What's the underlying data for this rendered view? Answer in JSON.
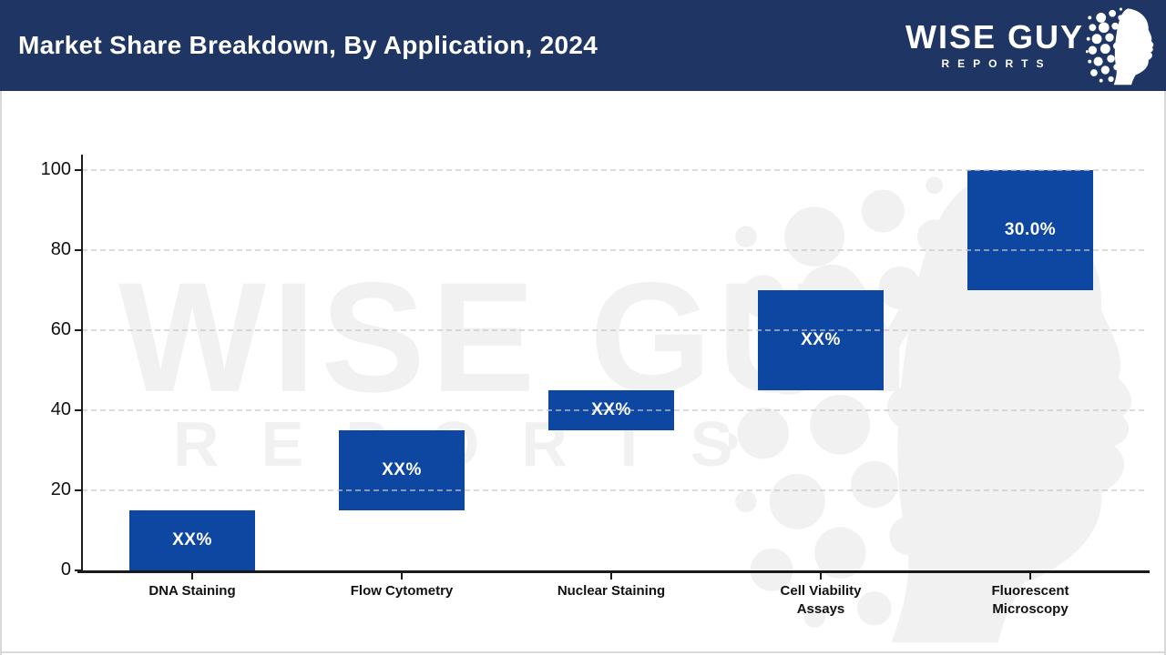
{
  "header": {
    "title": "Market Share Breakdown, By Application, 2024",
    "logo": {
      "name": "WISE GUY",
      "tagline": "REPORTS"
    }
  },
  "watermark": {
    "text": "WISE GUY",
    "tagline": "REPORTS"
  },
  "colors": {
    "header_bg": "#1f3563",
    "bar": "#0d47a1",
    "grid": "#d8d8d8",
    "axis": "#1a1a1a",
    "watermark": "#f1f1f1",
    "border": "#d9d9d9"
  },
  "chart_data": {
    "type": "bar",
    "subtype": "floating-segment-waterfall",
    "title": "Market Share Breakdown, By Application, 2024",
    "categories": [
      "DNA Staining",
      "Flow Cytometry",
      "Nuclear Staining",
      "Cell Viability Assays",
      "Fluorescent Microscopy"
    ],
    "category_label_lines": [
      [
        "DNA Staining"
      ],
      [
        "Flow Cytometry"
      ],
      [
        "Nuclear Staining"
      ],
      [
        "Cell Viability",
        "Assays"
      ],
      [
        "Fluorescent",
        "Microscopy"
      ]
    ],
    "segments": [
      {
        "category": "DNA Staining",
        "start": 0,
        "end": 15,
        "label": "XX%"
      },
      {
        "category": "Flow Cytometry",
        "start": 15,
        "end": 35,
        "label": "XX%"
      },
      {
        "category": "Nuclear Staining",
        "start": 35,
        "end": 45,
        "label": "XX%"
      },
      {
        "category": "Cell Viability Assays",
        "start": 45,
        "end": 70,
        "label": "XX%"
      },
      {
        "category": "Fluorescent Microscopy",
        "start": 70,
        "end": 100,
        "label": "30.0%"
      }
    ],
    "yticks": [
      0,
      20,
      40,
      60,
      80,
      100
    ],
    "ylim": [
      0,
      100
    ],
    "xlabel": "",
    "ylabel": "",
    "grid": "horizontal-dashed",
    "legend": "none"
  }
}
